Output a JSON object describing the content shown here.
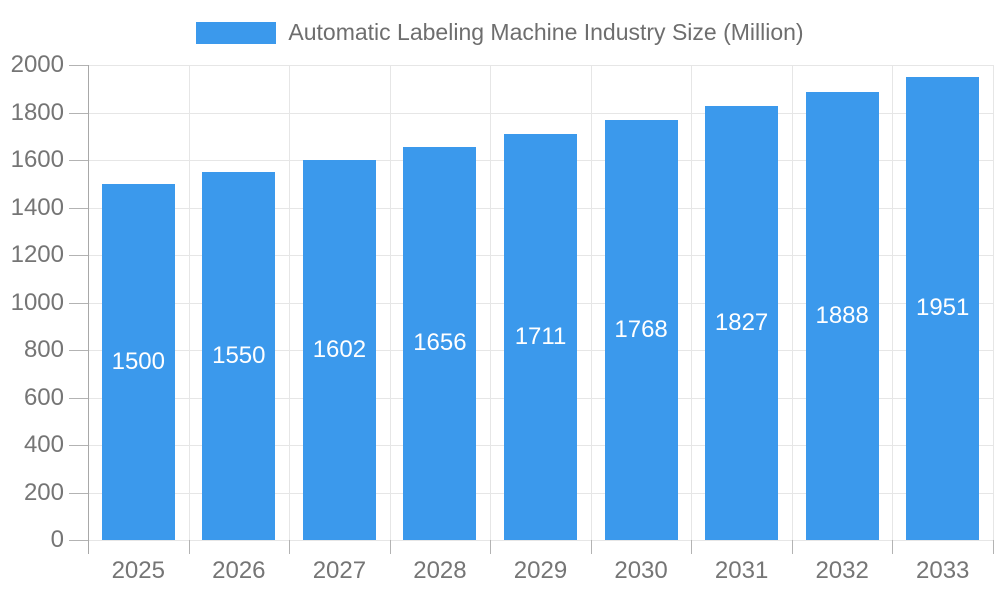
{
  "chart_data": {
    "type": "bar",
    "title": "Automatic Labeling Machine Industry Size (Million)",
    "legend": {
      "position": "top-center",
      "label": "Automatic Labeling Machine Industry Size (Million)"
    },
    "categories": [
      "2025",
      "2026",
      "2027",
      "2028",
      "2029",
      "2030",
      "2031",
      "2032",
      "2033"
    ],
    "series": [
      {
        "name": "Automatic Labeling Machine Industry Size (Million)",
        "values": [
          1500,
          1550,
          1602,
          1656,
          1711,
          1768,
          1827,
          1888,
          1951
        ]
      }
    ],
    "value_labels": {
      "visible": true,
      "placement": "inside-center",
      "color": "#ffffff"
    },
    "xlabel": "",
    "ylabel": "",
    "ylim": [
      0,
      2000
    ],
    "y_ticks": [
      0,
      200,
      400,
      600,
      800,
      1000,
      1200,
      1400,
      1600,
      1800,
      2000
    ],
    "grid": "on",
    "colors": {
      "bar": "#3b99ec",
      "gridline": "#e6e6e6",
      "axis_line": "#a8a8a8",
      "tick": "#b3b3b3",
      "axis_label_text": "#757575",
      "legend_text": "#6e6e6e",
      "value_label_text": "#ffffff",
      "background": "#ffffff"
    }
  }
}
